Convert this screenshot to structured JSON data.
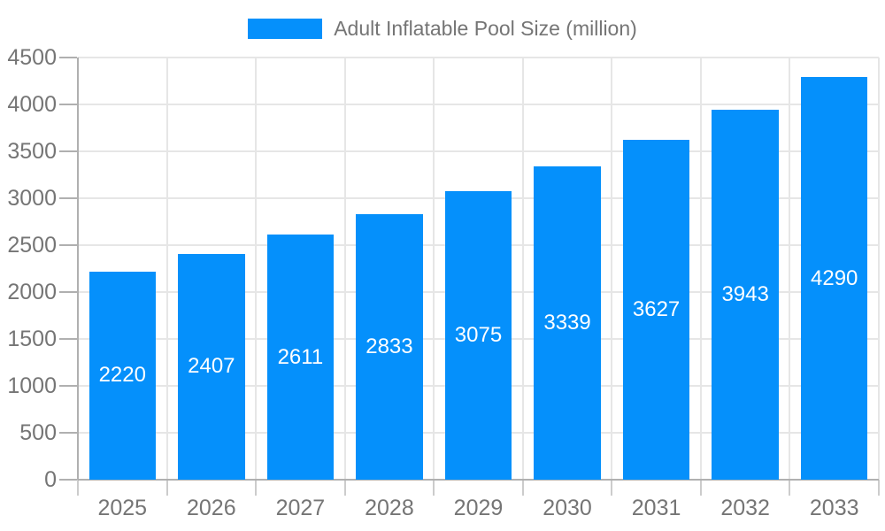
{
  "chart_data": {
    "type": "bar",
    "title": "Adult Inflatable Pool Size (million)",
    "categories": [
      "2025",
      "2026",
      "2027",
      "2028",
      "2029",
      "2030",
      "2031",
      "2032",
      "2033"
    ],
    "values": [
      2220,
      2407,
      2611,
      2833,
      3075,
      3339,
      3627,
      3943,
      4290
    ],
    "xlabel": "",
    "ylabel": "",
    "ylim": [
      0,
      4500
    ],
    "ytick_step": 500,
    "ytick_labels": [
      "0",
      "500",
      "1000",
      "1500",
      "2000",
      "2500",
      "3000",
      "3500",
      "4000",
      "4500"
    ],
    "grid": true,
    "legend_position": "top-center",
    "bar_color": "#0590fb",
    "value_label_color": "#ffffff",
    "axis_text_color": "#757575",
    "gridline_color": "#e6e6e6",
    "axis_line_color": "#b0b0b0"
  }
}
